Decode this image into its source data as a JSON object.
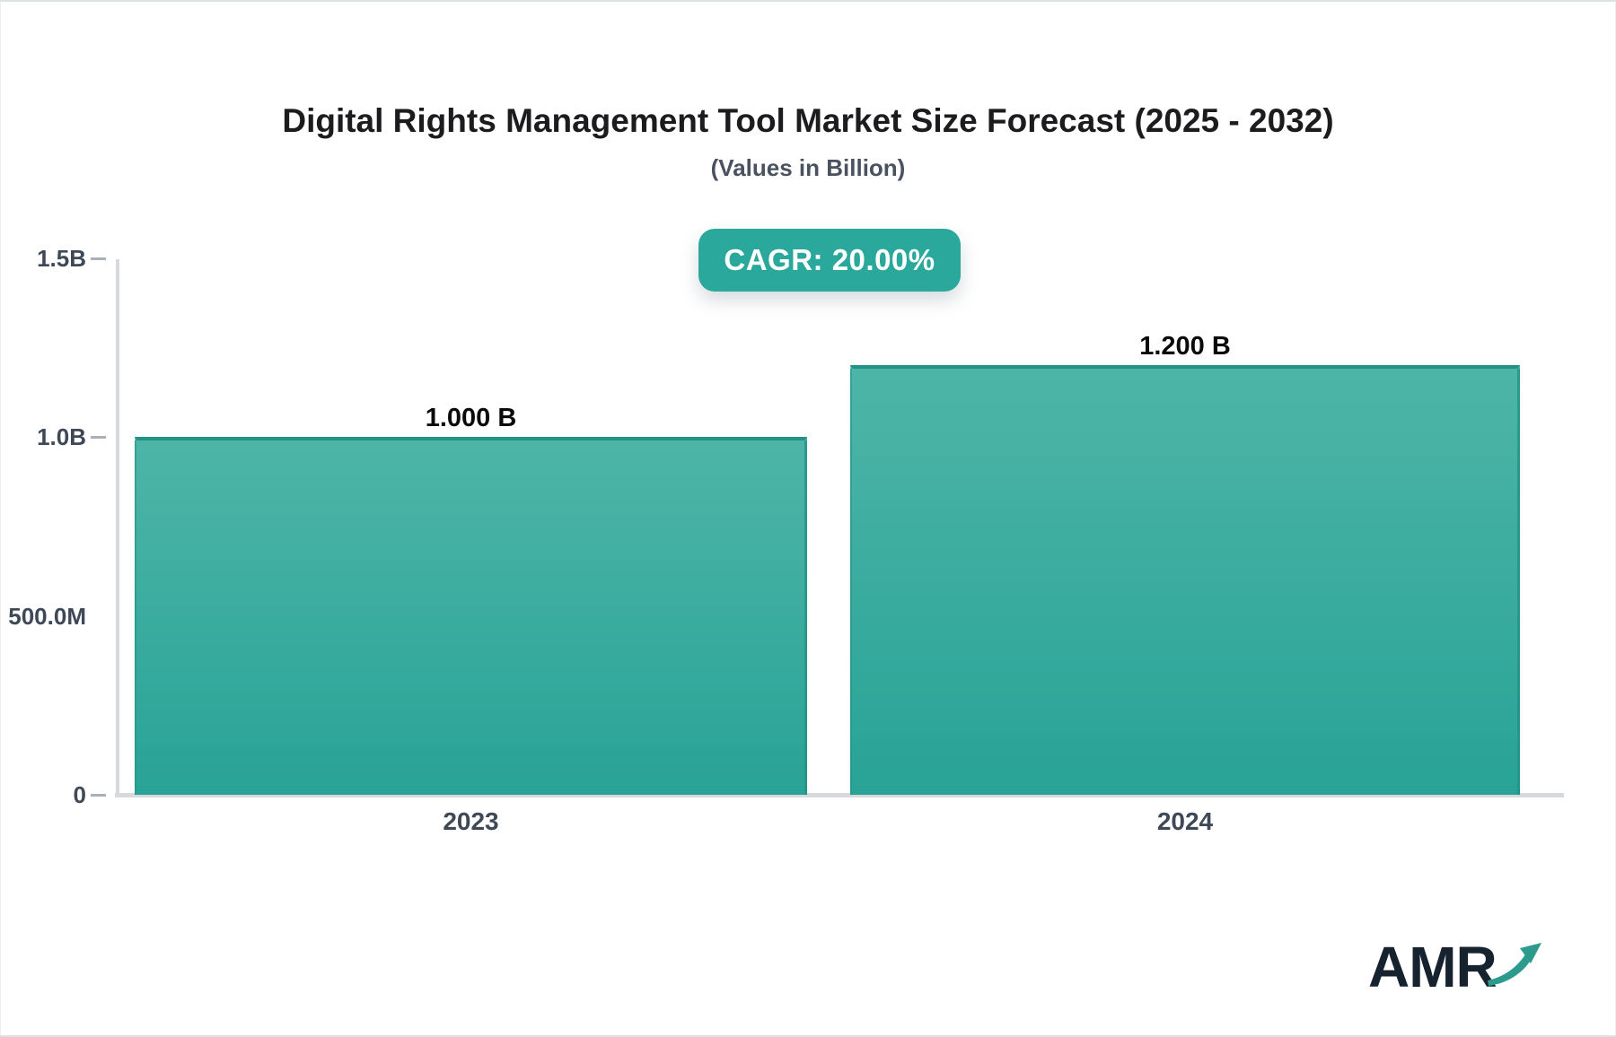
{
  "header": {
    "title": "Digital Rights Management Tool Market Size Forecast (2025 - 2032)",
    "subtitle": "(Values in Billion)"
  },
  "badge": {
    "label": "CAGR: 20.00%"
  },
  "chart_data": {
    "type": "bar",
    "title": "Digital Rights Management Tool Market Size Forecast (2025 - 2032)",
    "subtitle": "(Values in Billion)",
    "unit": "Billion",
    "cagr": "CAGR: 20.00%",
    "categories": [
      "2023",
      "2024"
    ],
    "values": [
      1.0,
      1.2
    ],
    "value_labels": [
      "1.000 B",
      "1.200 B"
    ],
    "ylim": [
      0,
      1.5
    ],
    "yticks": [
      {
        "label": "1.5B",
        "value": 1.5,
        "dash": true
      },
      {
        "label": "1.0B",
        "value": 1.0,
        "dash": true
      },
      {
        "label": "500.0M",
        "value": 0.5,
        "dash": false
      },
      {
        "label": "0",
        "value": 0,
        "dash": true
      }
    ],
    "grid": false,
    "legend": "none"
  },
  "colors": {
    "bar_fill_top": "#4db5a8",
    "bar_fill_bottom": "#28a396",
    "bar_border": "#219286",
    "badge_bg": "#2aa89b",
    "badge_text": "#ffffff",
    "axis_line": "#d6dade",
    "tick_dash": "#a9b0b8",
    "title_text": "#1c1c1e",
    "subtitle_text": "#4a5260",
    "axis_text": "#3e4856",
    "value_text": "#0a0a0a",
    "logo_navy": "#16222e",
    "logo_teal": "#2d9a8e"
  },
  "logo": {
    "text": "AMR",
    "arrow_icon": "trend-arrow-icon"
  }
}
